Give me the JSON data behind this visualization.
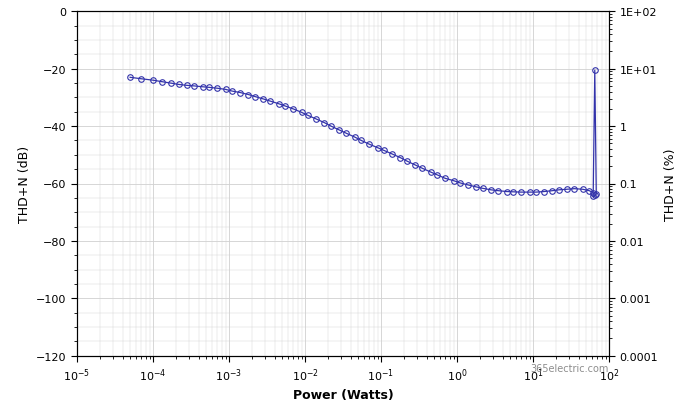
{
  "title": "",
  "xlabel": "Power (Watts)",
  "ylabel_left": "THD+N (dB)",
  "ylabel_right": "THD+N (%)",
  "line_color": "#3333aa",
  "marker": "o",
  "marker_size": 4,
  "marker_facecolor": "none",
  "xlim_log": [
    -5,
    2
  ],
  "ylim_left": [
    -120,
    0
  ],
  "grid_color": "#d0d0d0",
  "background_color": "#ffffff",
  "watermark": "365electric.com",
  "x_data": [
    5e-05,
    7e-05,
    0.0001,
    0.00013,
    0.00017,
    0.00022,
    0.00028,
    0.00035,
    0.00045,
    0.00055,
    0.0007,
    0.0009,
    0.0011,
    0.0014,
    0.0018,
    0.0022,
    0.0028,
    0.0035,
    0.0045,
    0.0055,
    0.007,
    0.009,
    0.011,
    0.014,
    0.018,
    0.022,
    0.028,
    0.035,
    0.045,
    0.055,
    0.07,
    0.09,
    0.11,
    0.14,
    0.18,
    0.22,
    0.28,
    0.35,
    0.45,
    0.55,
    0.7,
    0.9,
    1.1,
    1.4,
    1.8,
    2.2,
    2.8,
    3.5,
    4.5,
    5.5,
    7.0,
    9.0,
    11.0,
    14.0,
    18.0,
    22.0,
    28.0,
    35.0,
    45.0,
    55.0,
    62.0,
    65.0,
    68.0,
    65.0,
    62.0
  ],
  "y_data_dB": [
    -23.0,
    -23.5,
    -24.0,
    -24.5,
    -25.0,
    -25.5,
    -25.8,
    -26.0,
    -26.3,
    -26.5,
    -26.8,
    -27.2,
    -27.8,
    -28.3,
    -29.0,
    -29.7,
    -30.5,
    -31.3,
    -32.2,
    -33.0,
    -34.0,
    -35.2,
    -36.3,
    -37.5,
    -38.8,
    -40.0,
    -41.3,
    -42.5,
    -43.8,
    -45.0,
    -46.3,
    -47.5,
    -48.5,
    -49.7,
    -51.0,
    -52.2,
    -53.5,
    -54.7,
    -56.0,
    -57.0,
    -58.2,
    -59.0,
    -59.8,
    -60.5,
    -61.2,
    -61.7,
    -62.2,
    -62.5,
    -62.8,
    -62.9,
    -63.0,
    -63.0,
    -63.0,
    -62.8,
    -62.5,
    -62.2,
    -62.0,
    -61.8,
    -62.0,
    -62.5,
    -63.2,
    -20.5,
    -63.5,
    -64.0,
    -64.5
  ],
  "right_ticks": [
    100,
    10,
    1,
    0.1,
    0.01,
    0.001,
    0.0001
  ],
  "right_labels": [
    "1E+02",
    "1E+01",
    "1",
    "0.1",
    "0.01",
    "0.001",
    "0.0001"
  ]
}
